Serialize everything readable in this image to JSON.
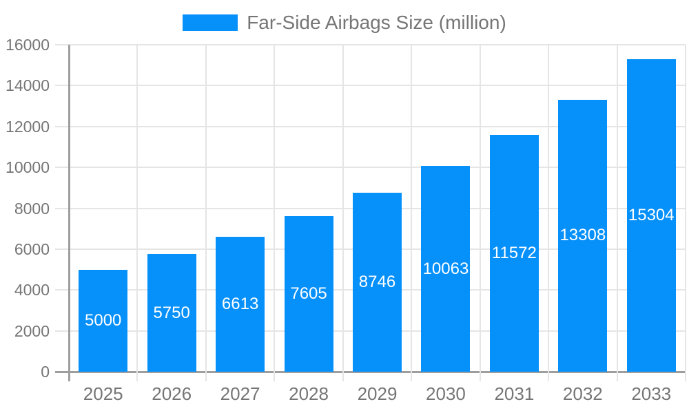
{
  "chart_data": {
    "type": "bar",
    "title": "Far-Side Airbags Size (million)",
    "categories": [
      "2025",
      "2026",
      "2027",
      "2028",
      "2029",
      "2030",
      "2031",
      "2032",
      "2033"
    ],
    "values": [
      5000,
      5750,
      6613,
      7605,
      8746,
      10063,
      11572,
      13308,
      15304
    ],
    "xlabel": "",
    "ylabel": "",
    "ylim": [
      0,
      16000
    ],
    "ytick_step": 2000,
    "grid": true,
    "legend_position": "top",
    "legend_entries": [
      "Far-Side Airbags Size (million)"
    ],
    "bar_labels_visible": true,
    "colors": {
      "bar": "#0690fa",
      "bar_label": "#ffffff",
      "axis_text": "#757575",
      "axis_line": "#9e9e9e",
      "grid_line": "#e5e5e5",
      "background": "#ffffff"
    }
  }
}
